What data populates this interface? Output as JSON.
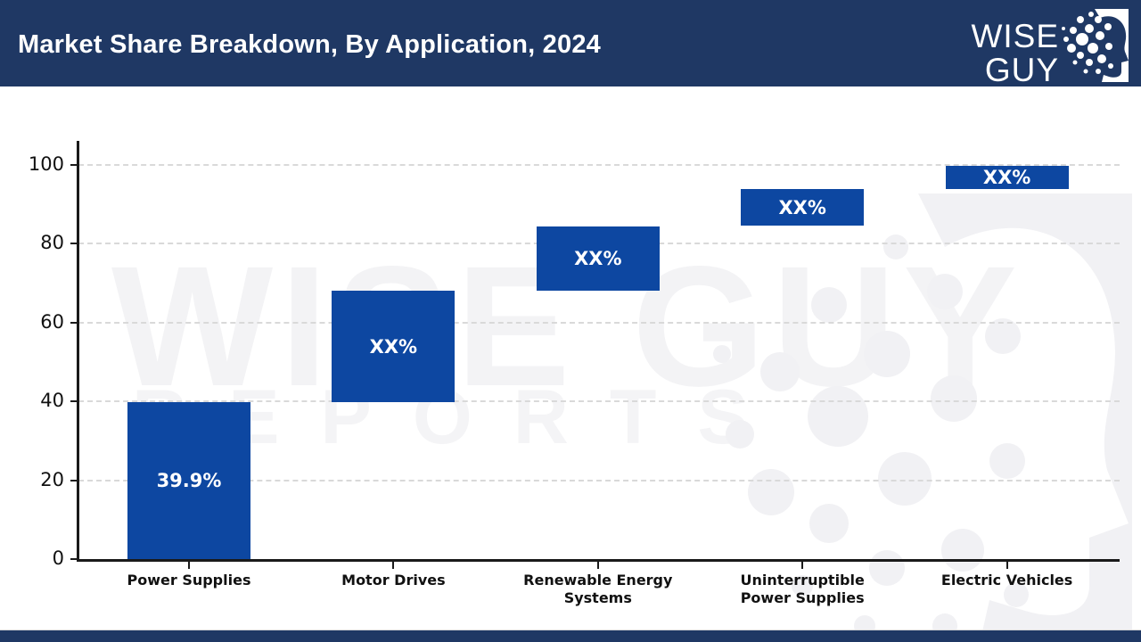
{
  "header": {
    "title": "Market Share Breakdown, By Application, 2024",
    "bg_color": "#1f3864",
    "logo": {
      "line1": "WISE GUY",
      "line2": "REPORTS"
    }
  },
  "watermark": {
    "line1": "WISE GUY",
    "line2": "REPORTS"
  },
  "chart_data": {
    "type": "bar",
    "subtype": "waterfall-floating-bars",
    "title": "Market Share Breakdown, By Application, 2024",
    "categories": [
      "Power Supplies",
      "Motor Drives",
      "Renewable Energy Systems",
      "Uninterruptible Power Supplies",
      "Electric Vehicles"
    ],
    "category_lines": [
      [
        "Power Supplies"
      ],
      [
        "Motor Drives"
      ],
      [
        "Renewable Energy",
        "Systems"
      ],
      [
        "Uninterruptible",
        "Power Supplies"
      ],
      [
        "Electric Vehicles"
      ]
    ],
    "series": [
      {
        "name": "Market Share %",
        "segments": [
          {
            "category": "Power Supplies",
            "start": 0,
            "end": 39.9,
            "label": "39.9%"
          },
          {
            "category": "Motor Drives",
            "start": 39.9,
            "end": 68.0,
            "label": "XX%"
          },
          {
            "category": "Renewable Energy Systems",
            "start": 68.0,
            "end": 84.5,
            "label": "XX%"
          },
          {
            "category": "Uninterruptible Power Supplies",
            "start": 84.5,
            "end": 93.8,
            "label": "XX%"
          },
          {
            "category": "Electric Vehicles",
            "start": 93.8,
            "end": 99.7,
            "label": "XX%"
          }
        ]
      }
    ],
    "xlabel": "",
    "ylabel": "",
    "yticks": [
      0,
      20,
      40,
      60,
      80,
      100
    ],
    "ylim": [
      0,
      105
    ],
    "grid": "horizontal-dashed",
    "legend": "none",
    "bar_color": "#0d47a1",
    "bar_label_color": "#ffffff"
  }
}
